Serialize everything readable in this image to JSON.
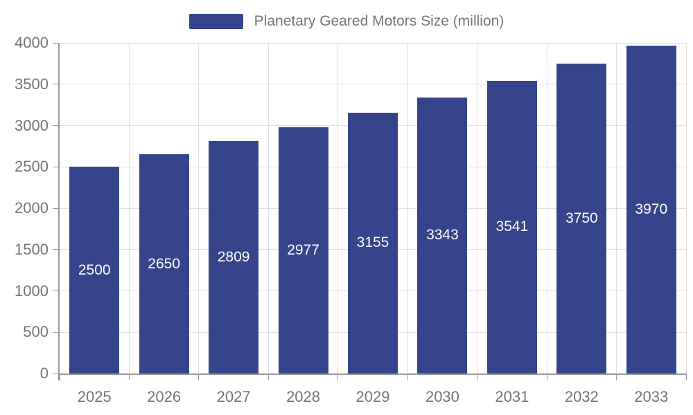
{
  "chart_data": {
    "type": "bar",
    "title": "Planetary Geared Motors Size (million)",
    "categories": [
      "2025",
      "2026",
      "2027",
      "2028",
      "2029",
      "2030",
      "2031",
      "2032",
      "2033"
    ],
    "series": [
      {
        "name": "Planetary Geared Motors Size (million)",
        "values": [
          2500,
          2650,
          2809,
          2977,
          3155,
          3343,
          3541,
          3750,
          3970
        ]
      }
    ],
    "xlabel": "",
    "ylabel": "",
    "ylim": [
      0,
      4000
    ],
    "yticks": [
      0,
      500,
      1000,
      1500,
      2000,
      2500,
      3000,
      3500,
      4000
    ],
    "grid": true,
    "legend_position": "top-center",
    "value_label_position": "inside-center",
    "colors": {
      "bar": "#36458B",
      "bar_label": "#FFFFFF",
      "axis_label": "#757575",
      "legend_text": "#757575",
      "grid_line": "#E0E0E0",
      "axis_line": "#999999",
      "background": "#FFFFFF"
    }
  }
}
